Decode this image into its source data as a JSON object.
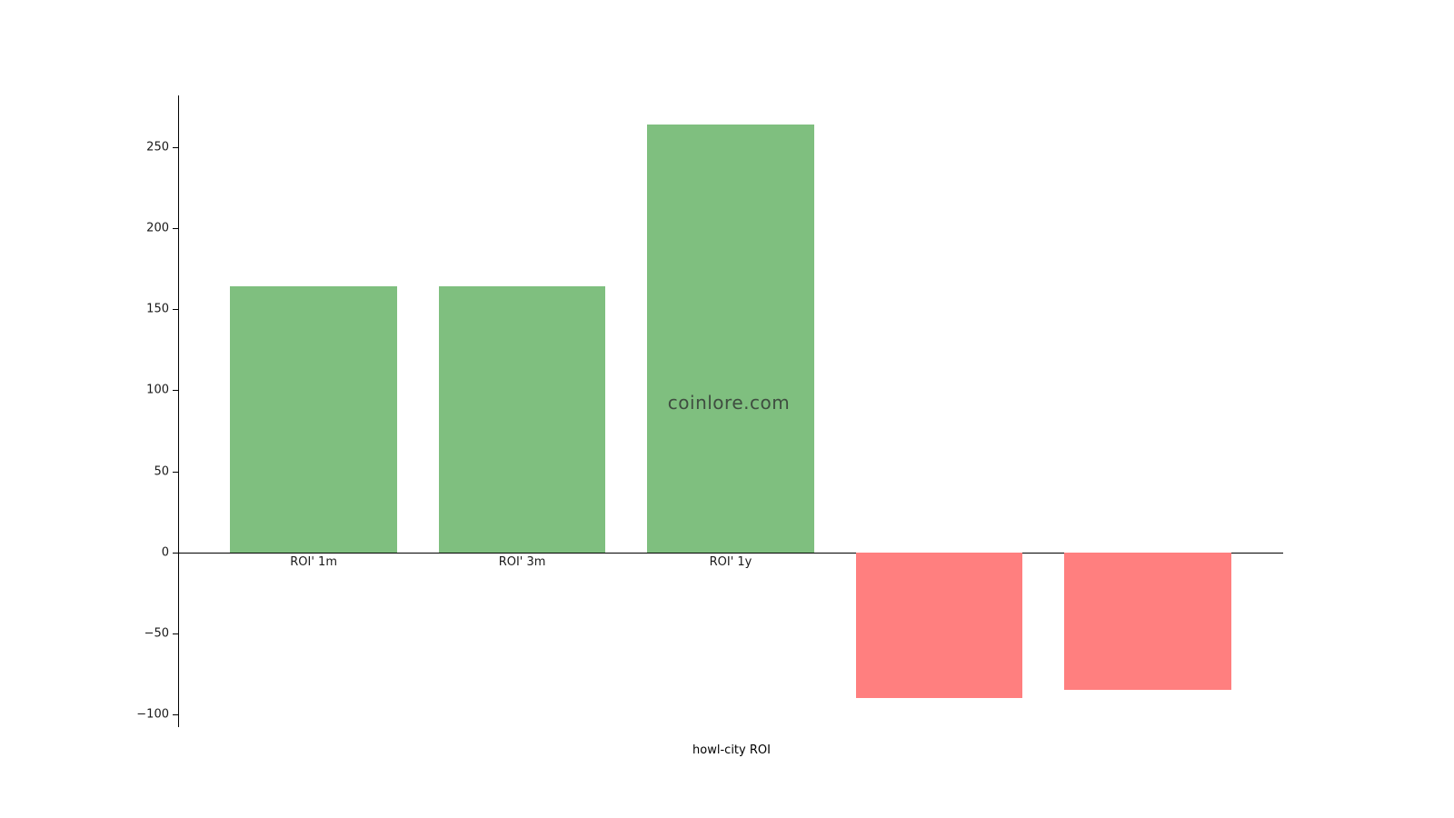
{
  "watermark": "coinlore.com",
  "chart_data": {
    "type": "bar",
    "title": "",
    "xlabel": "howl-city ROI",
    "ylabel": "",
    "categories": [
      "ROI' 1m",
      "ROI' 3m",
      "ROI' 1y",
      "",
      ""
    ],
    "values": [
      164,
      164,
      264,
      -90,
      -85
    ],
    "positive_color": "#7fbf7f",
    "negative_color": "#ff7f7f",
    "axis_color": "#000000",
    "tick_label_color": "#1a1a1a",
    "watermark_color": "#3f4d40",
    "ylim": [
      -107.7,
      281.7
    ],
    "yticks": [
      250,
      200,
      150,
      100,
      50,
      0,
      -50,
      -100
    ],
    "grid": false,
    "legend_position": "none"
  }
}
